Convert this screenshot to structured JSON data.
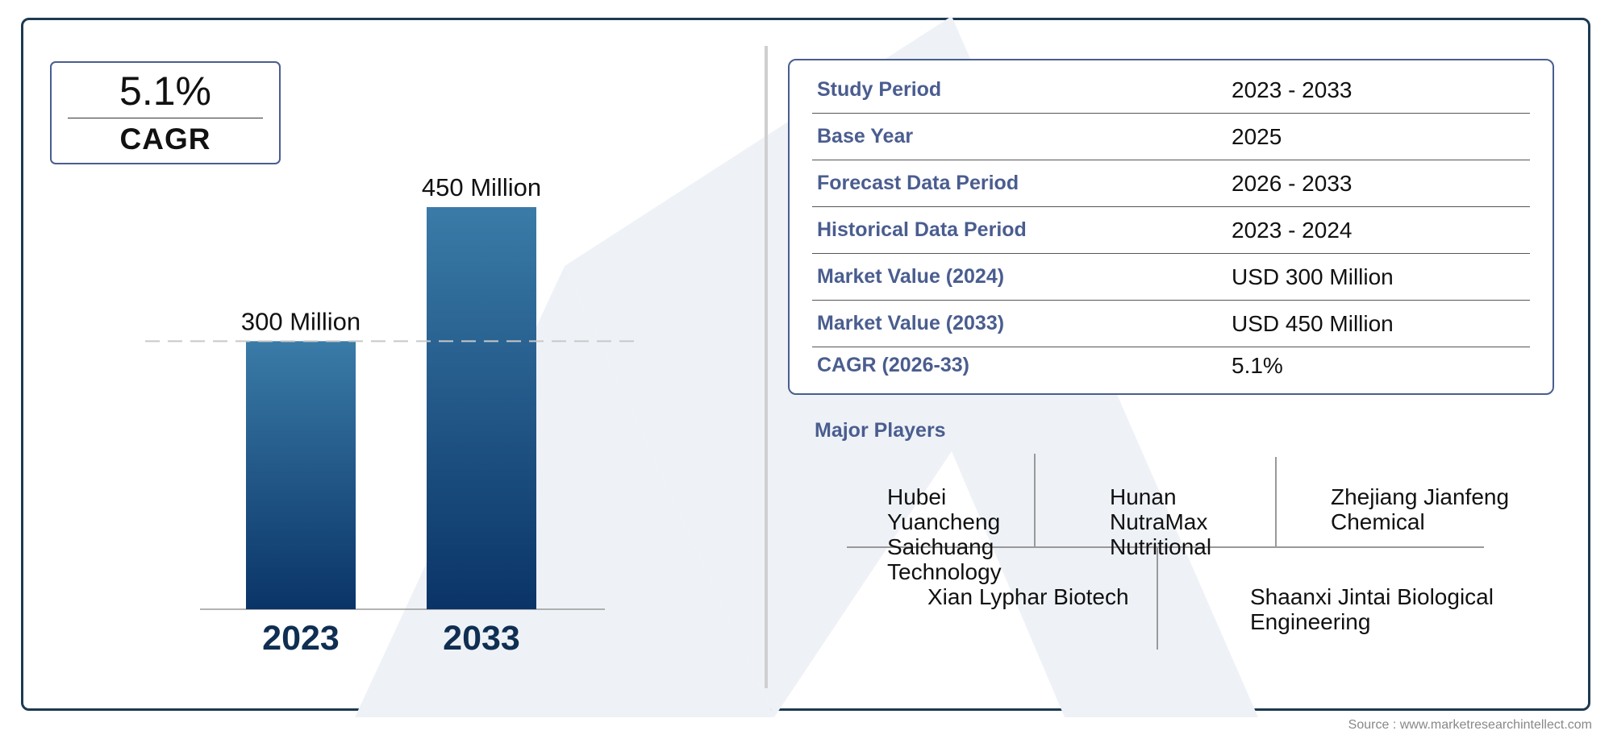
{
  "colors": {
    "frame": "#1c3a52",
    "accent": "#4a5d8f",
    "bar_top": "#3a7ba8",
    "bar_bottom": "#0a3468",
    "year_label": "#0f2e52",
    "watermark": "#e9eef5"
  },
  "cagr_box": {
    "value": "5.1%",
    "label": "CAGR"
  },
  "chart_data": {
    "type": "bar",
    "categories": [
      "2023",
      "2033"
    ],
    "values": [
      300,
      450
    ],
    "value_labels": [
      "300 Million",
      "450 Million"
    ],
    "units": "Million",
    "reference_line": 300,
    "ylim": [
      0,
      450
    ],
    "grid": false,
    "legend": "none"
  },
  "info_table": {
    "rows": [
      {
        "label": "Study Period",
        "value": "2023 - 2033"
      },
      {
        "label": "Base Year",
        "value": "2025"
      },
      {
        "label": "Forecast Data Period",
        "value": "2026 - 2033"
      },
      {
        "label": "Historical Data Period",
        "value": "2023 - 2024"
      },
      {
        "label": "Market Value (2024)",
        "value": "USD 300 Million"
      },
      {
        "label": "Market Value (2033)",
        "value": "USD 450 Million"
      },
      {
        "label": "CAGR (2026-33)",
        "value": "5.1%"
      }
    ]
  },
  "major_players": {
    "title": "Major Players",
    "players": [
      "Hubei Yuancheng Saichuang Technology",
      "Hunan NutraMax Nutritional",
      "Zhejiang Jianfeng Chemical",
      "Xian Lyphar Biotech",
      "Shaanxi Jintai Biological Engineering"
    ]
  },
  "source": "Source : www.marketresearchintellect.com"
}
